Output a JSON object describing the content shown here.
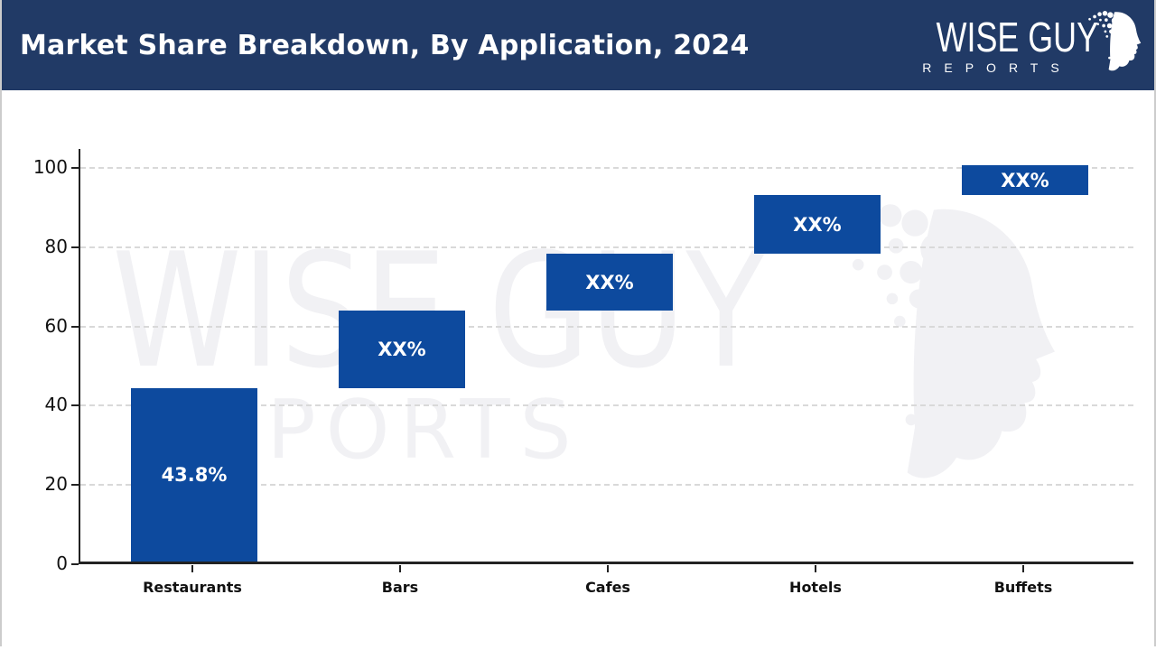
{
  "header": {
    "title": "Market Share Breakdown, By Application, 2024",
    "logo": {
      "wordmark": "WISE GUY",
      "subtext": "REPORTS"
    }
  },
  "watermark": {
    "line1": "WISE GUY",
    "line2": "REPORTS"
  },
  "chart_data": {
    "type": "bar",
    "subtype": "waterfall",
    "title": "Market Share Breakdown, By Application, 2024",
    "categories": [
      "Restaurants",
      "Bars",
      "Cafes",
      "Hotels",
      "Buffets"
    ],
    "segments": [
      {
        "category": "Restaurants",
        "start": 0,
        "end": 43.8,
        "value": 43.8,
        "label": "43.8%"
      },
      {
        "category": "Bars",
        "start": 43.8,
        "end": 63.3,
        "value": 19.5,
        "label": "XX%"
      },
      {
        "category": "Cafes",
        "start": 63.3,
        "end": 77.7,
        "value": 14.4,
        "label": "XX%"
      },
      {
        "category": "Hotels",
        "start": 77.7,
        "end": 92.4,
        "value": 14.7,
        "label": "XX%"
      },
      {
        "category": "Buffets",
        "start": 92.4,
        "end": 100,
        "value": 7.6,
        "label": "XX%"
      }
    ],
    "yticks": [
      0,
      20,
      40,
      60,
      80,
      100
    ],
    "ylim": [
      0,
      104.8
    ],
    "xlabel": "",
    "ylabel": "",
    "grid": "horizontal-dashed",
    "legend": "none",
    "colors": {
      "bar": "#0D4A9E",
      "bar_label": "#FFFFFF",
      "grid": "#D9D9D9",
      "axis": "#222222",
      "tick_label": "#111111"
    }
  },
  "colors": {
    "header_bg": "#213A66",
    "header_text": "#FFFFFF",
    "content_bg": "#FFFFFF",
    "watermark": "#F1F1F4",
    "card_border": "#CCCCCC"
  }
}
